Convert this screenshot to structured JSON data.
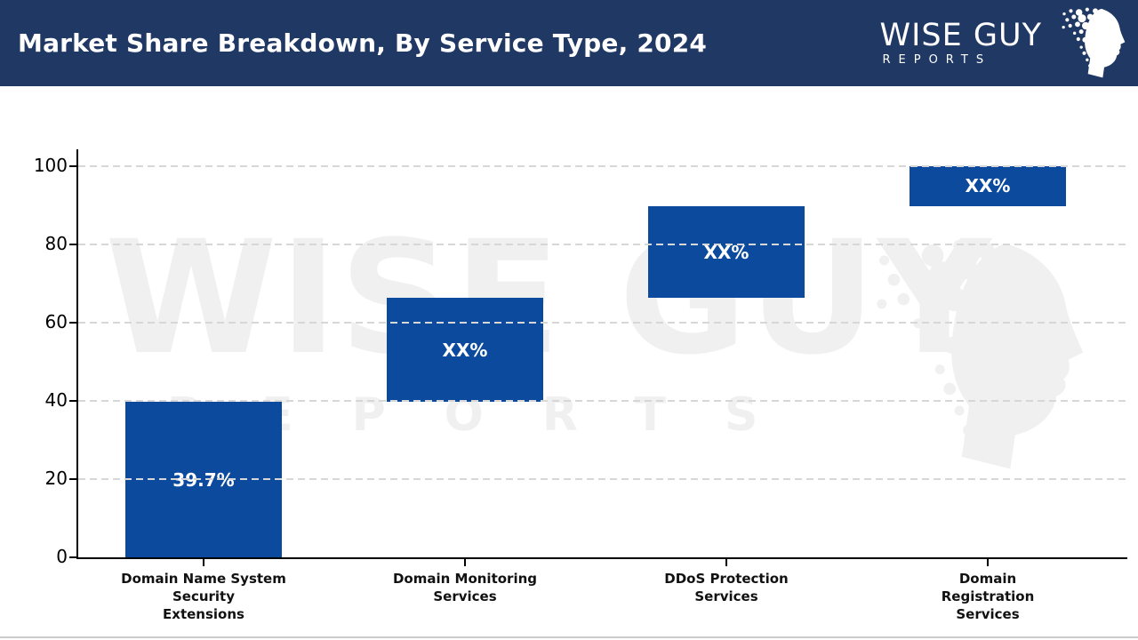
{
  "header": {
    "title": "Market Share Breakdown, By Service Type, 2024",
    "logo": {
      "wordmark": "WISE GUY",
      "subtext": "REPORTS"
    }
  },
  "watermark": {
    "wordmark": "WISE GUY",
    "subtext": "REPORTS"
  },
  "chart_data": {
    "type": "bar",
    "subtype": "waterfall",
    "title": "Market Share Breakdown, By Service Type, 2024",
    "categories": [
      [
        "Domain Name System",
        "Security",
        "Extensions"
      ],
      [
        "Domain Monitoring",
        "Services"
      ],
      [
        "DDoS Protection",
        "Services"
      ],
      [
        "Domain",
        "Registration",
        "Services"
      ]
    ],
    "bars": [
      {
        "label": "39.7%",
        "start": 0,
        "end": 39.7
      },
      {
        "label": "XX%",
        "start": 39.7,
        "end": 66.3
      },
      {
        "label": "XX%",
        "start": 66.3,
        "end": 89.8
      },
      {
        "label": "XX%",
        "start": 89.8,
        "end": 100
      }
    ],
    "y_ticks": [
      0,
      20,
      40,
      60,
      80,
      100
    ],
    "ylim": [
      0,
      105
    ],
    "xlabel": "",
    "ylabel": "",
    "grid": "horizontal-dashed",
    "legend": "none"
  },
  "colors": {
    "header_bg": "#203864",
    "title_text": "#ffffff",
    "bar": "#0C4A9E",
    "bar_label": "#ffffff",
    "grid": "#d7d7d7",
    "axis": "#000000",
    "watermark": "#f0f0f0"
  }
}
